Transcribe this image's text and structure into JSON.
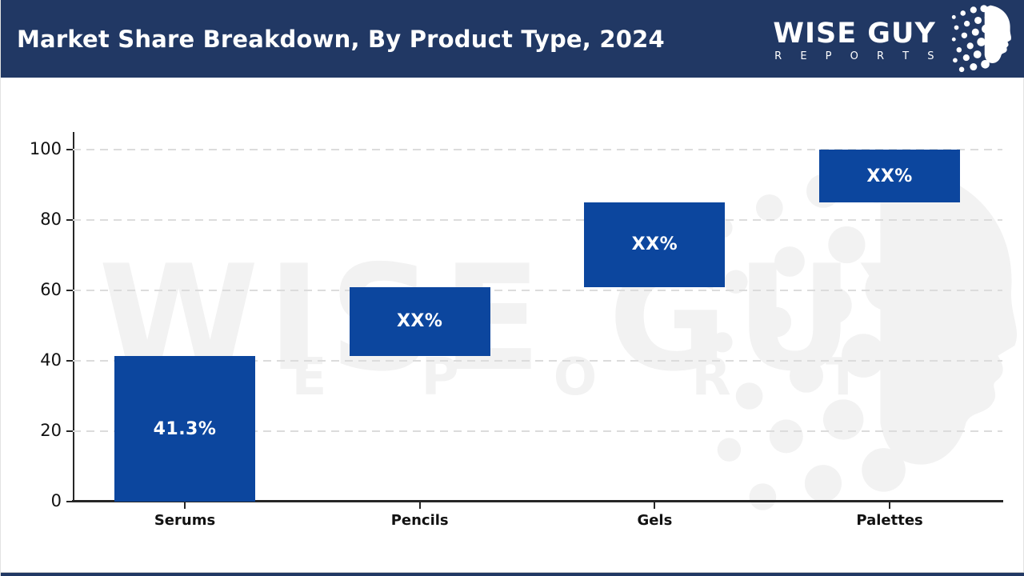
{
  "header": {
    "title": "Market Share Breakdown, By Product Type, 2024",
    "logo": {
      "brand_top": "WISE GUY",
      "brand_bottom": "R E P O R T S",
      "face_icon": "dotted-head-icon"
    }
  },
  "watermark": {
    "text": "WISE GUY",
    "subtext": "R E P O R T S",
    "face_icon": "dotted-head-watermark"
  },
  "chart_data": {
    "type": "bar",
    "variant": "waterfall",
    "title": "Market Share Breakdown, By Product Type, 2024",
    "categories": [
      "Serums",
      "Pencils",
      "Gels",
      "Palettes"
    ],
    "bars": [
      {
        "category": "Serums",
        "start": 0,
        "end": 41.3,
        "label": "41.3%"
      },
      {
        "category": "Pencils",
        "start": 41.3,
        "end": 61.0,
        "label": "XX%"
      },
      {
        "category": "Gels",
        "start": 61.0,
        "end": 85.0,
        "label": "XX%"
      },
      {
        "category": "Palettes",
        "start": 85.0,
        "end": 100,
        "label": "XX%"
      }
    ],
    "xlabel": "",
    "ylabel": "",
    "ylim": [
      0,
      100
    ],
    "yticks": [
      0,
      20,
      40,
      60,
      80,
      100
    ],
    "grid": "horizontal-dashed",
    "legend": "none"
  },
  "colors": {
    "header_bg": "#213864",
    "footer_bg": "#213864",
    "bar": "#0c469e",
    "bar_label": "#ffffff",
    "grid": "#dcdcdc",
    "axis": "#262626",
    "tick_label": "#111111",
    "watermark": "#f2f2f2"
  }
}
